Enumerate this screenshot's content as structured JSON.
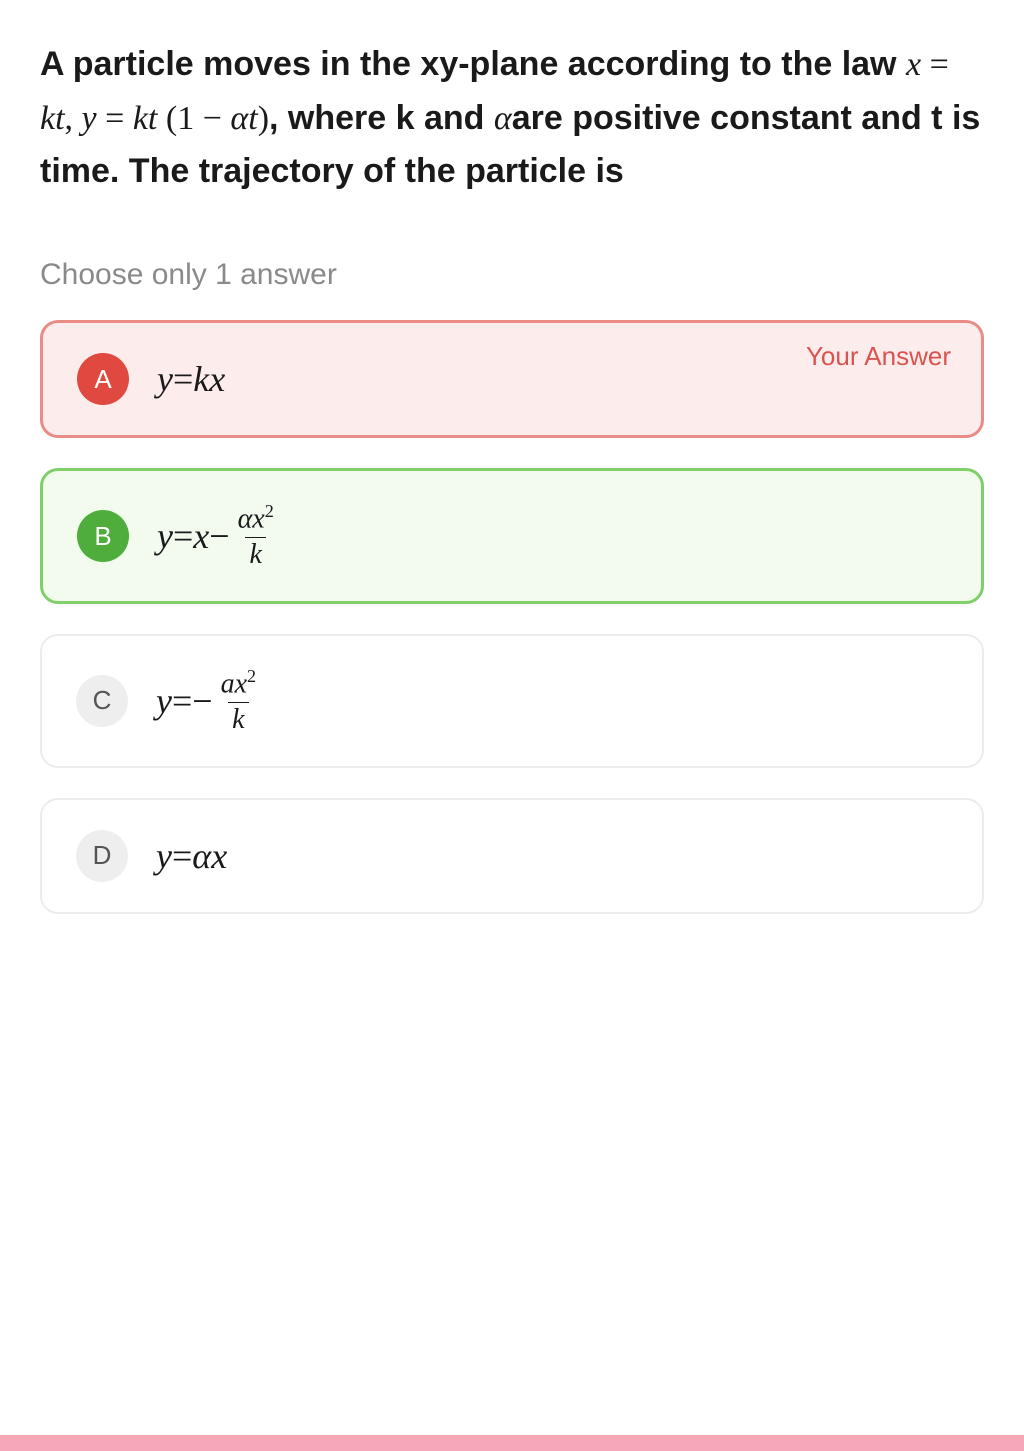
{
  "question": {
    "prefix": "A particle moves in the xy-plane according to the law ",
    "eq_lhs_x": "x",
    "eq_eq": " = ",
    "eq_rhs_x": "kt",
    "eq_sep": ", ",
    "eq_lhs_y": "y",
    "eq_rhs_y1": "kt",
    "eq_paren_open": " (",
    "eq_one": "1",
    "eq_minus": " − ",
    "eq_alpha_t": "αt",
    "eq_paren_close": ")",
    "mid": ", where k and ",
    "alpha": "α",
    "suffix": "are positive constant and t is time. The trajectory of the particle is"
  },
  "instruction": "Choose only 1 answer",
  "your_answer_label": "Your Answer",
  "options": {
    "a": {
      "letter": "A",
      "lhs": "y",
      "eq": " = ",
      "rhs": "kx"
    },
    "b": {
      "letter": "B",
      "lhs": "y",
      "eq": " = ",
      "rhs1": "x",
      "minus": " − ",
      "num": "αx",
      "sup": "2",
      "den": "k"
    },
    "c": {
      "letter": "C",
      "lhs": "y",
      "eq": " = ",
      "minus": " − ",
      "num": "ax",
      "sup": "2",
      "den": "k"
    },
    "d": {
      "letter": "D",
      "lhs": "y",
      "eq": " = ",
      "rhs": "αx"
    }
  },
  "colors": {
    "red_border": "#e98b87",
    "red_bg": "#fdecec",
    "red_badge": "#e04940",
    "green_border": "#7fcf6a",
    "green_bg": "#f2fbee",
    "green_badge": "#4fae3b",
    "plain_border": "#ececec",
    "plain_badge": "#eeeeee",
    "your_answer": "#d9534f",
    "bottom_bar": "#f7a8b8"
  },
  "typography": {
    "question_fontsize": 34,
    "option_fontsize": 36,
    "instruction_fontsize": 30
  }
}
